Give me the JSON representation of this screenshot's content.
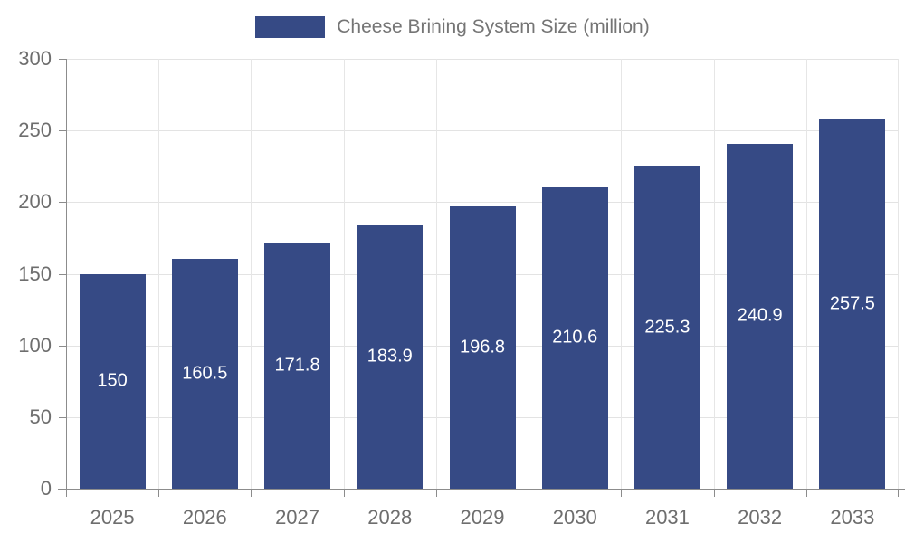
{
  "legend": {
    "label": "Cheese Brining System Size (million)"
  },
  "colors": {
    "bar": "#364a85",
    "grid": "#e3e3e3",
    "axis": "#8c8c8c",
    "tick_text": "#6e6e6e",
    "legend_text": "#757575",
    "value_label": "#ffffff"
  },
  "chart_data": {
    "type": "bar",
    "title": "Cheese Brining System Size (million)",
    "categories": [
      "2025",
      "2026",
      "2027",
      "2028",
      "2029",
      "2030",
      "2031",
      "2032",
      "2033"
    ],
    "values": [
      150,
      160.5,
      171.8,
      183.9,
      196.8,
      210.6,
      225.3,
      240.9,
      257.5
    ],
    "value_labels": [
      "150",
      "160.5",
      "171.8",
      "183.9",
      "196.8",
      "210.6",
      "225.3",
      "240.9",
      "257.5"
    ],
    "xlabel": "",
    "ylabel": "",
    "ylim": [
      0,
      300
    ],
    "yticks": [
      0,
      50,
      100,
      150,
      200,
      250,
      300
    ],
    "grid": true,
    "legend_position": "top",
    "series_color": "#364a85",
    "label_position": "inside-center",
    "label_color": "#ffffff"
  }
}
